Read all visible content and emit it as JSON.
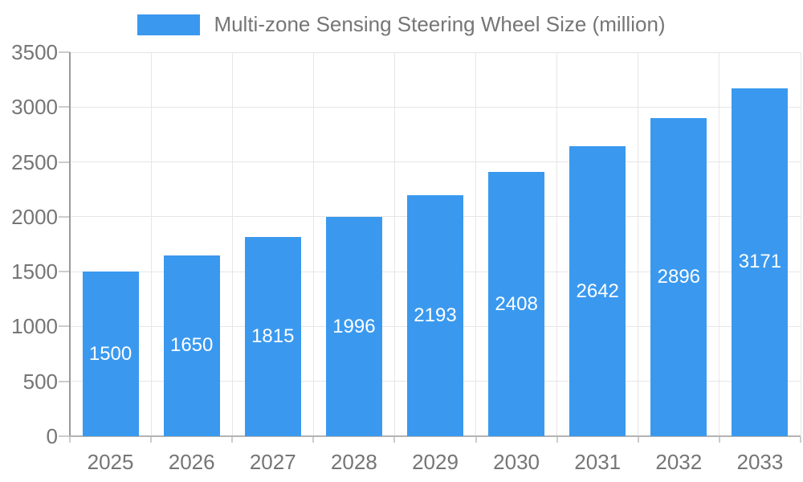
{
  "legend": {
    "label": "Multi-zone Sensing Steering Wheel Size (million)"
  },
  "colors": {
    "bar": "#3A99EF",
    "axis_label": "#757575",
    "grid": "#e6e6e6",
    "y_axis_line": "#999999",
    "x_axis_line": "#b3b3b3",
    "tick": "#cccccc",
    "value_label": "#ffffff",
    "background": "#ffffff"
  },
  "chart_data": {
    "type": "bar",
    "title": "",
    "series_name": "Multi-zone Sensing Steering Wheel Size (million)",
    "categories": [
      "2025",
      "2026",
      "2027",
      "2028",
      "2029",
      "2030",
      "2031",
      "2032",
      "2033"
    ],
    "values": [
      1500,
      1650,
      1815,
      1996,
      2193,
      2408,
      2642,
      2896,
      3171
    ],
    "ylim": [
      0,
      3500
    ],
    "ytick_step": 500,
    "yticks": [
      "0",
      "500",
      "1000",
      "1500",
      "2000",
      "2500",
      "3000",
      "3500"
    ],
    "grid": true,
    "legend_position": "top",
    "value_label_position": "inside-center"
  }
}
